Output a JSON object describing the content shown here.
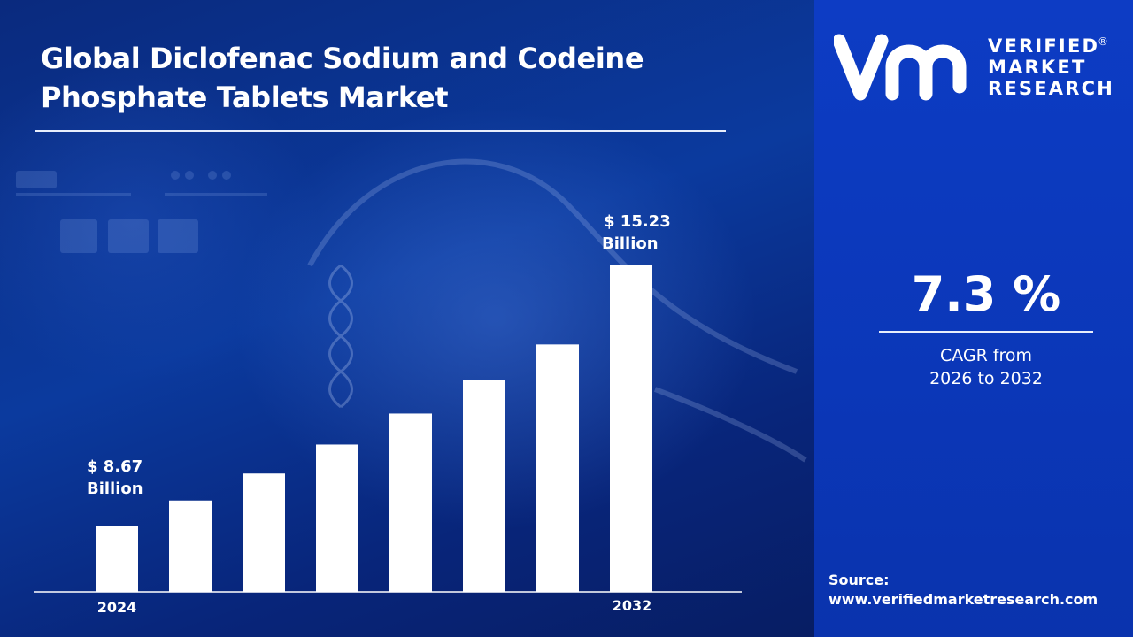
{
  "header": {
    "title_line1": "Global Diclofenac Sodium and Codeine",
    "title_line2": "Phosphate Tablets Market"
  },
  "brand": {
    "line1": "VERIFIED",
    "line2": "MARKET",
    "line3": "RESEARCH",
    "registered": "®"
  },
  "cagr": {
    "value": "7.3 %",
    "label_line1": "CAGR from",
    "label_line2": "2026 to 2032"
  },
  "source": {
    "label": "Source:",
    "url": "www.verifiedmarketresearch.com"
  },
  "colors": {
    "bar": "#ffffff",
    "panel": "#0b37b8",
    "background": "#0b2a80"
  },
  "chart_data": {
    "type": "bar",
    "categories": [
      "2024",
      "",
      "",
      "",
      "",
      "",
      "",
      "2032"
    ],
    "values": [
      8.67,
      9.3,
      9.98,
      10.71,
      11.49,
      12.33,
      13.23,
      15.23
    ],
    "ylim": [
      7,
      16
    ],
    "first_label": {
      "value": "$ 8.67",
      "unit": "Billion"
    },
    "last_label": {
      "value": "$ 15.23",
      "unit": "Billion"
    },
    "tick_labels": [
      "2024",
      "2032"
    ],
    "grid": false,
    "legend": "none"
  }
}
